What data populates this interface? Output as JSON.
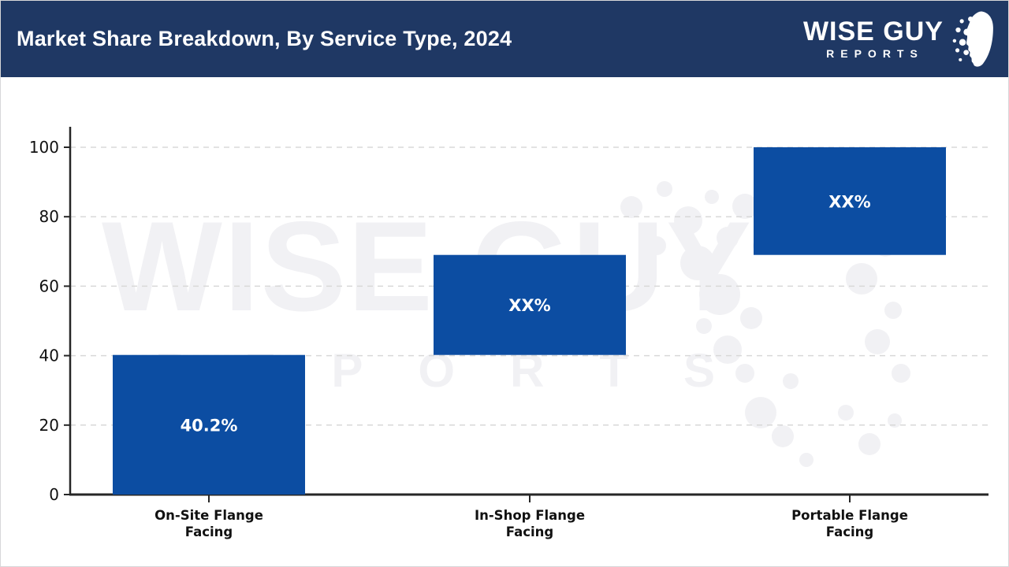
{
  "header": {
    "title": "Market Share Breakdown, By Service Type, 2024",
    "bg_color": "#1f3864",
    "logo": {
      "brand_top": "WISE GUY",
      "brand_bottom": "REPORTS"
    }
  },
  "watermark": {
    "brand_top": "WISE GUY",
    "brand_bottom": "REPORTS"
  },
  "chart_data": {
    "type": "bar",
    "subtype": "waterfall",
    "title": "Market Share Breakdown, By Service Type, 2024",
    "categories": [
      [
        "On-Site Flange",
        "Facing"
      ],
      [
        "In-Shop Flange",
        "Facing"
      ],
      [
        "Portable Flange",
        "Facing"
      ]
    ],
    "series": [
      {
        "name": "On-Site Flange Facing",
        "start": 0,
        "end": 40.2,
        "label": "40.2%"
      },
      {
        "name": "In-Shop Flange Facing",
        "start": 40.2,
        "end": 69,
        "label": "XX%"
      },
      {
        "name": "Portable Flange Facing",
        "start": 69,
        "end": 100,
        "label": "XX%"
      }
    ],
    "ylim": [
      0,
      100
    ],
    "yticks": [
      0,
      20,
      40,
      60,
      80,
      100
    ],
    "bar_color": "#0c4da2",
    "bar_label_color": "#ffffff",
    "axis_color": "#262626",
    "gridline_color": "#d8d8d8",
    "grid": "horizontal dashed",
    "legend": "none"
  }
}
